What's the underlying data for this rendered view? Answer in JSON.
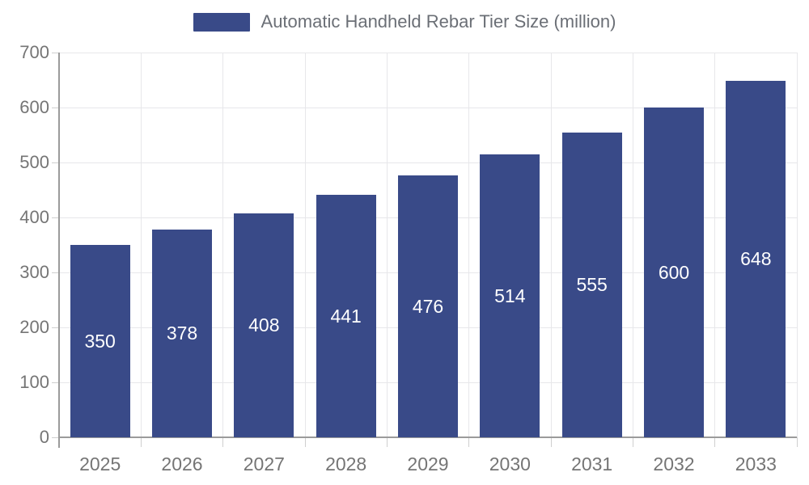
{
  "legend": {
    "position": "top"
  },
  "chart_data": {
    "type": "bar",
    "title": "Automatic Handheld Rebar Tier Size (million)",
    "categories": [
      "2025",
      "2026",
      "2027",
      "2028",
      "2029",
      "2030",
      "2031",
      "2032",
      "2033"
    ],
    "values": [
      350,
      378,
      408,
      441,
      476,
      514,
      555,
      600,
      648
    ],
    "xlabel": "",
    "ylabel": "",
    "ylim": [
      0,
      700
    ],
    "yticks": [
      0,
      100,
      200,
      300,
      400,
      500,
      600,
      700
    ],
    "grid": true,
    "legend_position": "top",
    "colors": {
      "bar": "#394A88",
      "bar_value_label": "#ffffff",
      "grid": "#e7e7ea",
      "axis_line": "#9b9b9b",
      "tick": "#cfcfcf",
      "tick_label": "#757575",
      "legend_text": "#6b6f76"
    }
  }
}
